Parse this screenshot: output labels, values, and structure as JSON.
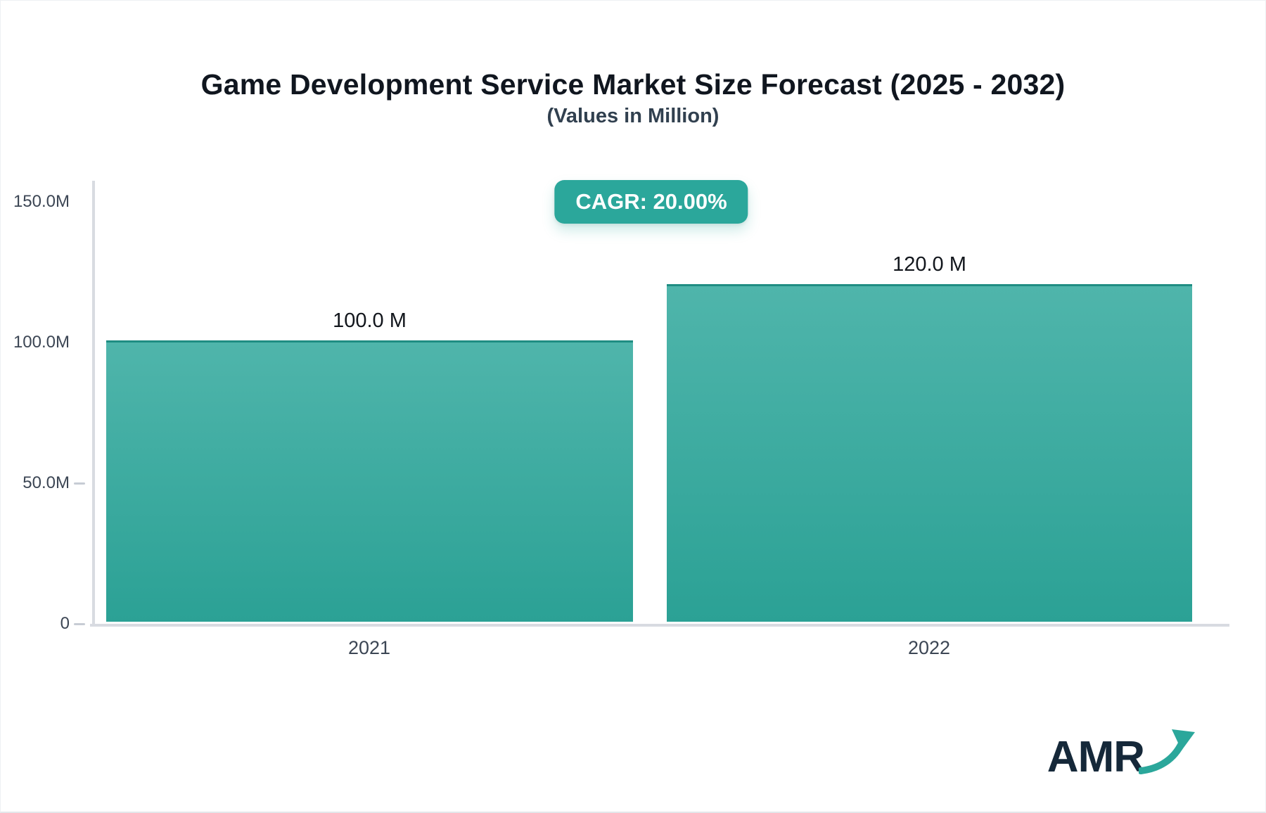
{
  "header": {
    "title": "Game Development Service Market Size Forecast (2025 - 2032)",
    "subtitle": "(Values in Million)"
  },
  "badge": {
    "label": "CAGR: 20.00%"
  },
  "chart_data": {
    "type": "bar",
    "title": "Game Development Service Market Size Forecast (2025 - 2032)",
    "subtitle": "(Values in Million)",
    "unit": "Million",
    "cagr_percent": "20.00%",
    "categories": [
      "2021",
      "2022"
    ],
    "values": [
      100.0,
      120.0
    ],
    "value_labels": [
      "100.0 M",
      "120.0 M"
    ],
    "ylim": [
      0,
      150
    ],
    "yticks": [
      "150.0M",
      "100.0M",
      "50.0M",
      "0"
    ],
    "grid": false,
    "legend": false
  },
  "colors": {
    "accent-teal": "#2BA79B",
    "bar-fill-top": "#4FB5AB",
    "bar-fill-bottom": "#2BA195",
    "bar-border": "#1F8D83",
    "axis-gray": "#D8DBE1",
    "title-text": "#10161F",
    "subtitle-text": "#31404F",
    "label-text": "#3C4654",
    "logo-navy": "#152839"
  },
  "logo": {
    "text": "AMR",
    "icon": "trend-up-arrow-icon"
  }
}
